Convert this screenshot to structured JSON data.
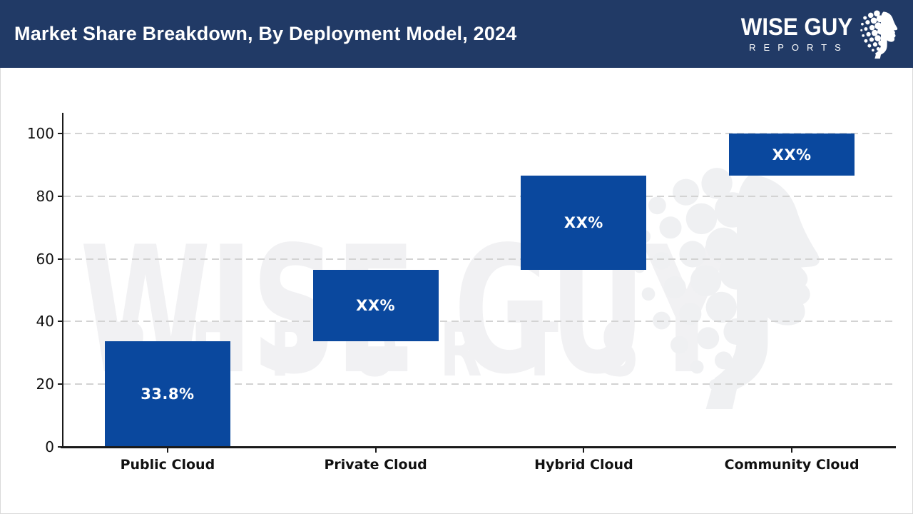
{
  "page": {
    "background": "#ffffff",
    "border_color": "#d9d9d9"
  },
  "header": {
    "background": "#213a66",
    "title": "Market Share Breakdown, By Deployment Model, 2024",
    "title_color": "#ffffff",
    "logo": {
      "line1": "WISE GUY",
      "line2": "REPORTS",
      "color": "#ffffff"
    }
  },
  "watermark": {
    "line1": "WISE GUY",
    "line2": "REPORTS",
    "color": "#f1f1f3"
  },
  "chart_data": {
    "type": "bar",
    "subtype": "waterfall",
    "title": "Market Share Breakdown, By Deployment Model, 2024",
    "categories": [
      "Public Cloud",
      "Private Cloud",
      "Hybrid Cloud",
      "Community Cloud"
    ],
    "bars": [
      {
        "category": "Public Cloud",
        "start": 0,
        "end": 33.8,
        "label": "33.8%"
      },
      {
        "category": "Private Cloud",
        "start": 33.8,
        "end": 56.5,
        "label": "XX%"
      },
      {
        "category": "Hybrid Cloud",
        "start": 56.5,
        "end": 86.5,
        "label": "XX%"
      },
      {
        "category": "Community Cloud",
        "start": 86.5,
        "end": 100,
        "label": "XX%"
      }
    ],
    "xlabel": "",
    "ylabel": "",
    "ylim": [
      0,
      100
    ],
    "yticks": [
      0,
      20,
      40,
      60,
      80,
      100
    ],
    "grid": {
      "axis": "y",
      "style": "dashed",
      "color": "#d3d3d3"
    },
    "bar_color": "#0a489e",
    "bar_label_color": "#ffffff",
    "axis_color": "#1a1a1a",
    "tick_label_color": "#111111",
    "legend": "none"
  }
}
